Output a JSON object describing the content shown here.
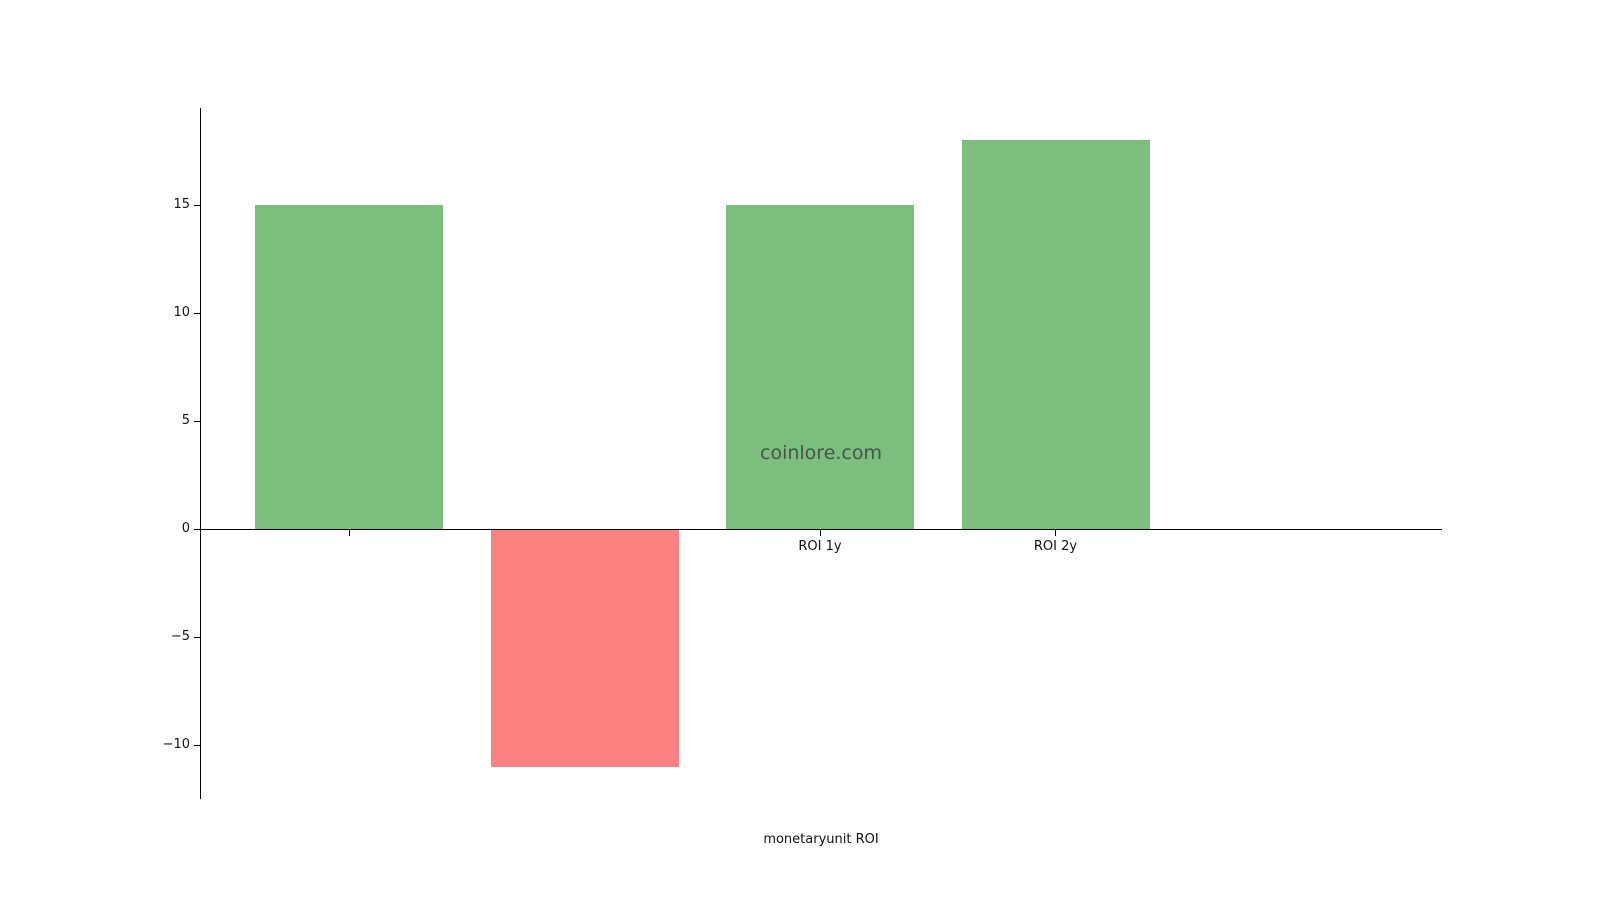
{
  "chart_data": {
    "type": "bar",
    "title": "",
    "xlabel": "monetaryunit ROI",
    "ylabel": "",
    "categories": [
      "",
      "",
      "ROI 1y",
      "ROI 2y"
    ],
    "values": [
      15,
      -11,
      15,
      18
    ],
    "yticks": [
      15,
      10,
      5,
      0,
      -5,
      -10
    ],
    "ylim": [
      -12.5,
      19.5
    ],
    "grid": false,
    "legend": "none",
    "colors": {
      "positive": "#7cbe7e",
      "negative": "#fe8181"
    }
  },
  "watermark": {
    "text": "coinlore.com"
  }
}
